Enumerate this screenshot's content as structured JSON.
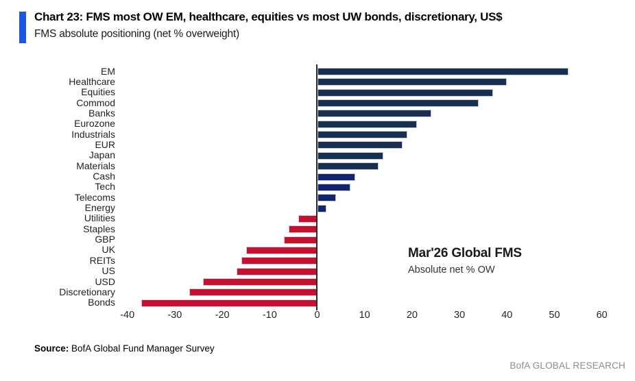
{
  "header": {
    "title": "Chart 23: FMS most OW EM, healthcare, equities vs most UW bonds, discretionary, US$",
    "subtitle": "FMS absolute positioning (net % overweight)",
    "accent_color": "#1B55E2"
  },
  "chart_data": {
    "type": "bar",
    "orientation": "horizontal",
    "title": "FMS absolute positioning (net % overweight)",
    "categories": [
      "EM",
      "Healthcare",
      "Equities",
      "Commod",
      "Banks",
      "Eurozone",
      "Industrials",
      "EUR",
      "Japan",
      "Materials",
      "Cash",
      "Tech",
      "Telecoms",
      "Energy",
      "Utilities",
      "Staples",
      "GBP",
      "UK",
      "REITs",
      "US",
      "USD",
      "Discretionary",
      "Bonds"
    ],
    "values": [
      53,
      40,
      37,
      34,
      24,
      21,
      19,
      18,
      14,
      13,
      8,
      7,
      4,
      2,
      -4,
      -6,
      -7,
      -15,
      -16,
      -17,
      -24,
      -27,
      -37
    ],
    "bar_colors": [
      "#17304F",
      "#17304F",
      "#17304F",
      "#17304F",
      "#17304F",
      "#17304F",
      "#17304F",
      "#17304F",
      "#17304F",
      "#17304F",
      "#13246E",
      "#13246E",
      "#13246E",
      "#13246E",
      "#C5112F",
      "#C5112F",
      "#C5112F",
      "#C5112F",
      "#C5112F",
      "#C5112F",
      "#C5112F",
      "#C5112F",
      "#C5112F"
    ],
    "colors": {
      "navy": "#17304F",
      "royal_blue": "#13246E",
      "red": "#C5112F"
    },
    "x_ticks": [
      -40,
      -30,
      -20,
      -10,
      0,
      10,
      20,
      30,
      40,
      50,
      60
    ],
    "xlim": [
      -40,
      60
    ],
    "grid": false,
    "legend": "none",
    "annotation": {
      "line1": "Mar'26 Global FMS",
      "line2": "Absolute net % OW"
    }
  },
  "footer": {
    "source_label": "Source:",
    "source_text": " BofA Global Fund Manager Survey",
    "research_label": "BofA GLOBAL RESEARCH"
  }
}
